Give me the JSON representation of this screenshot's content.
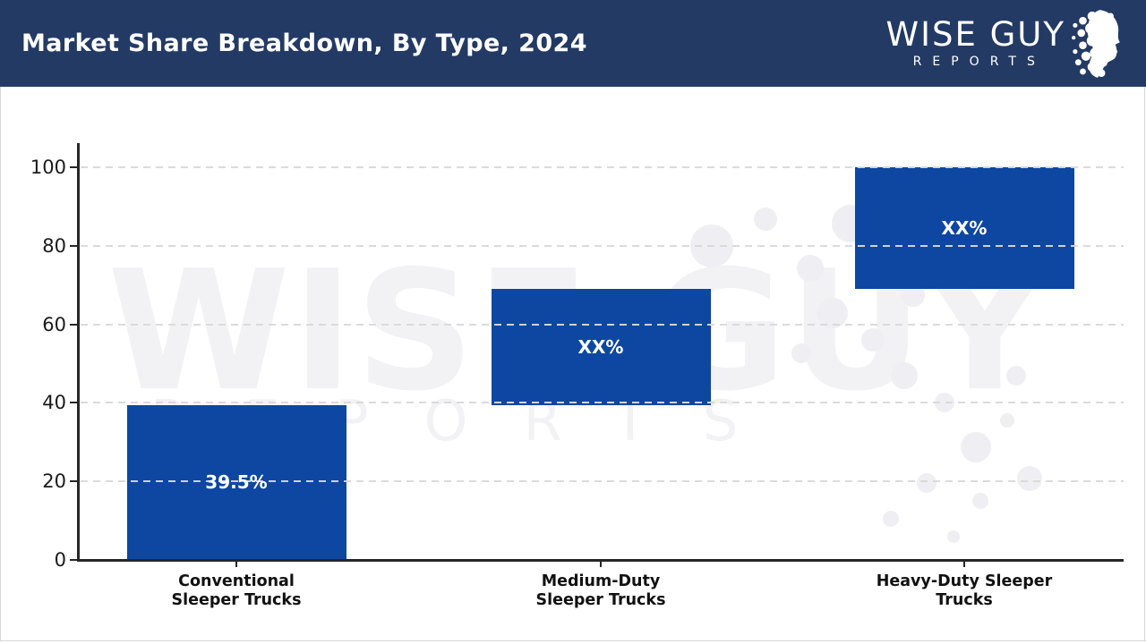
{
  "header": {
    "title": "Market Share Breakdown, By Type, 2024",
    "logo": {
      "name_line": "WISE GUY",
      "sub_line": "REPORTS"
    }
  },
  "watermark": {
    "name_line": "WISE GUY",
    "sub_line": "REPORTS"
  },
  "colors": {
    "header_bg": "#233A64",
    "bar": "#0D47A1",
    "bar_label": "#FFFFFF",
    "grid": "#D9D9D9",
    "axis": "#262626",
    "watermark": "#F2F2F5"
  },
  "chart_data": {
    "type": "bar",
    "subtype": "waterfall",
    "title": "Market Share Breakdown, By Type, 2024",
    "categories": [
      [
        "Conventional",
        "Sleeper Trucks"
      ],
      [
        "Medium-Duty",
        "Sleeper Trucks"
      ],
      [
        "Heavy-Duty Sleeper",
        "Trucks"
      ]
    ],
    "segments": [
      {
        "start": 0,
        "end": 39.5,
        "label": "39.5%"
      },
      {
        "start": 39.5,
        "end": 69,
        "label": "XX%"
      },
      {
        "start": 69,
        "end": 100,
        "label": "XX%"
      }
    ],
    "ylim": [
      0,
      100
    ],
    "yticks": [
      0,
      20,
      40,
      60,
      80,
      100
    ],
    "grid": "horizontal-dashed",
    "legend_position": "none"
  }
}
